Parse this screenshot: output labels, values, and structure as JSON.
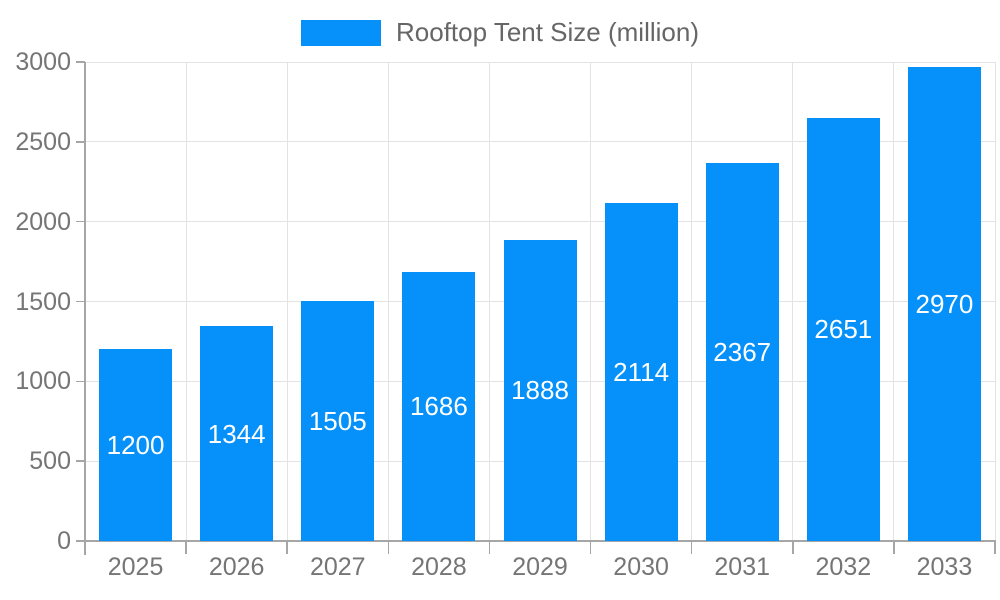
{
  "chart_data": {
    "type": "bar",
    "title": "Rooftop Tent Size (million)",
    "legend": [
      {
        "label": "Rooftop Tent Size (million)",
        "color": "#0591f9"
      }
    ],
    "legend_position": "top",
    "categories": [
      "2025",
      "2026",
      "2027",
      "2028",
      "2029",
      "2030",
      "2031",
      "2032",
      "2033"
    ],
    "series": [
      {
        "name": "Rooftop Tent Size (million)",
        "values": [
          1200,
          1344,
          1505,
          1686,
          1888,
          2114,
          2367,
          2651,
          2970
        ]
      }
    ],
    "xlabel": "",
    "ylabel": "",
    "ylim": [
      0,
      3000
    ],
    "yticks": [
      0,
      500,
      1000,
      1500,
      2000,
      2500,
      3000
    ],
    "grid": true,
    "colors": {
      "bar": "#0591f9",
      "axis_text": "#757575",
      "legend_text": "#666666",
      "gridline": "#e3e3e3",
      "axis_line": "#a6a6a6",
      "value_label": "#ffffff",
      "background": "#ffffff"
    }
  }
}
